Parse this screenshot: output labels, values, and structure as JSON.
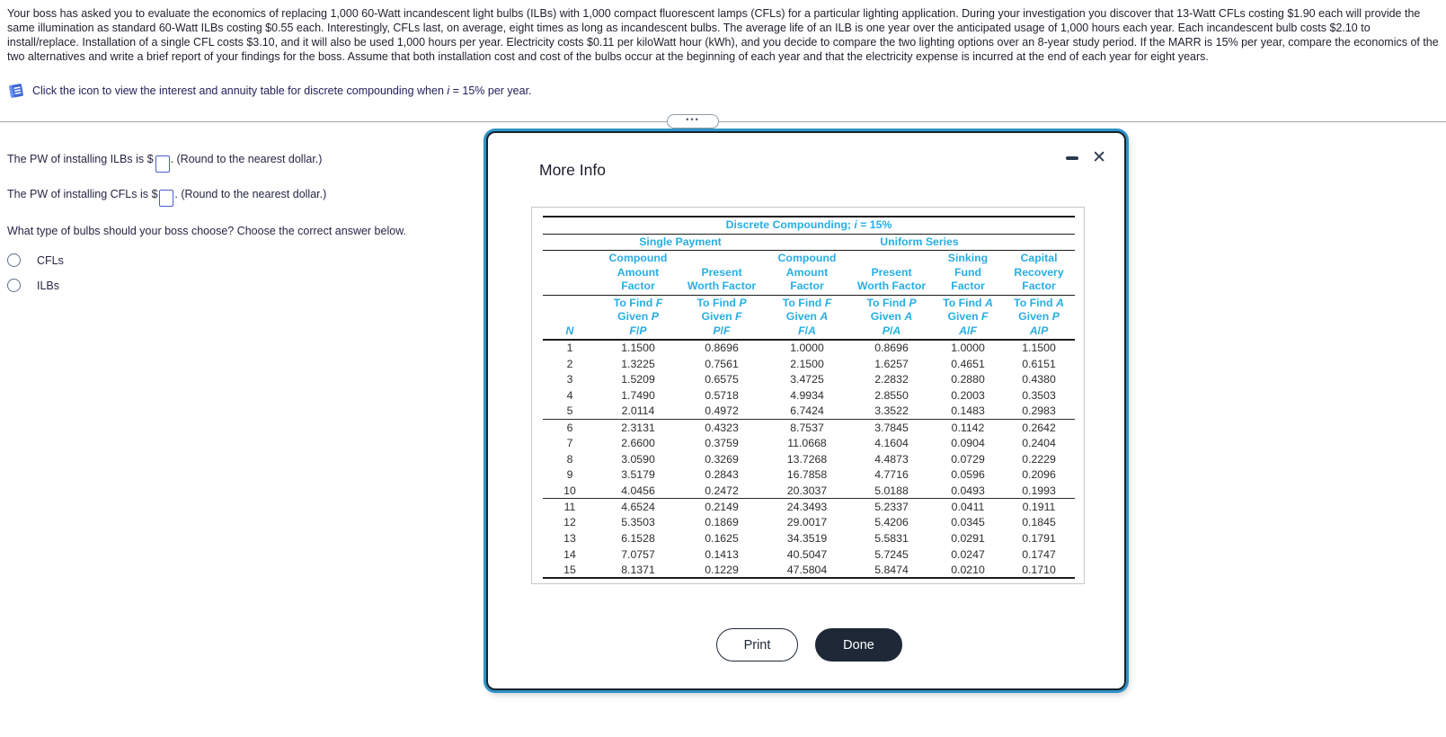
{
  "problem": {
    "text": "Your boss has asked you to evaluate the economics of replacing 1,000 60-Watt incandescent light bulbs (ILBs) with 1,000 compact fluorescent lamps (CFLs) for a particular lighting application. During your investigation you discover that 13-Watt CFLs costing $1.90 each will provide the same illumination as standard 60-Watt ILBs costing $0.55 each. Interestingly, CFLs last, on average, eight times as long as incandescent bulbs. The average life of an ILB is one year over the anticipated usage of 1,000 hours each year. Each incandescent bulb costs $2.10 to install/replace. Installation of a single CFL costs $3.10, and it will also be used 1,000 hours per year. Electricity costs $0.11 per kiloWatt hour (kWh), and you decide to compare the two lighting options over an 8-year study period. If the MARR is 15% per year, compare the economics of the two alternatives and write a brief report of your findings for the boss. Assume that both installation cost and cost of the bulbs occur at the beginning of each year and that the electricity expense is incurred at the end of each year for eight years."
  },
  "info_link": {
    "icon": "book-icon",
    "text": "Click the icon to view the interest and annuity table for discrete compounding when i = 15% per year."
  },
  "divider": {
    "handle_dots": "•••"
  },
  "questions": {
    "q1_prefix": "The PW of installing ILBs is $",
    "q1_value": "",
    "q1_suffix": ". (Round to the nearest dollar.)",
    "q2_prefix": "The PW of installing CFLs is $",
    "q2_value": "",
    "q2_suffix": ". (Round to the nearest dollar.)",
    "q3_text": "What type of bulbs should your boss choose? Choose the correct answer below.",
    "options": [
      {
        "label": "CFLs",
        "selected": false
      },
      {
        "label": "ILBs",
        "selected": false
      }
    ]
  },
  "modal": {
    "title": "More Info",
    "controls": {
      "minimize": "minimize",
      "close": "✕"
    },
    "table": {
      "title": "Discrete Compounding; i = 15%",
      "group_headers": [
        "Single Payment",
        "Uniform Series"
      ],
      "columns": [
        {
          "factor_lines": [],
          "tofind_lines": [
            "N"
          ]
        },
        {
          "factor_lines": [
            "Compound",
            "Amount",
            "Factor"
          ],
          "tofind_lines": [
            "To Find F",
            "Given P",
            "F/P"
          ]
        },
        {
          "factor_lines": [
            "Present",
            "Worth Factor"
          ],
          "tofind_lines": [
            "To Find P",
            "Given F",
            "P/F"
          ]
        },
        {
          "factor_lines": [
            "Compound",
            "Amount",
            "Factor"
          ],
          "tofind_lines": [
            "To Find F",
            "Given A",
            "F/A"
          ]
        },
        {
          "factor_lines": [
            "Present",
            "Worth Factor"
          ],
          "tofind_lines": [
            "To Find P",
            "Given A",
            "P/A"
          ]
        },
        {
          "factor_lines": [
            "Sinking",
            "Fund",
            "Factor"
          ],
          "tofind_lines": [
            "To Find A",
            "Given F",
            "A/F"
          ]
        },
        {
          "factor_lines": [
            "Capital",
            "Recovery",
            "Factor"
          ],
          "tofind_lines": [
            "To Find A",
            "Given P",
            "A/P"
          ]
        }
      ],
      "rows": [
        [
          "1",
          "1.1500",
          "0.8696",
          "1.0000",
          "0.8696",
          "1.0000",
          "1.1500"
        ],
        [
          "2",
          "1.3225",
          "0.7561",
          "2.1500",
          "1.6257",
          "0.4651",
          "0.6151"
        ],
        [
          "3",
          "1.5209",
          "0.6575",
          "3.4725",
          "2.2832",
          "0.2880",
          "0.4380"
        ],
        [
          "4",
          "1.7490",
          "0.5718",
          "4.9934",
          "2.8550",
          "0.2003",
          "0.3503"
        ],
        [
          "5",
          "2.0114",
          "0.4972",
          "6.7424",
          "3.3522",
          "0.1483",
          "0.2983"
        ],
        [
          "6",
          "2.3131",
          "0.4323",
          "8.7537",
          "3.7845",
          "0.1142",
          "0.2642"
        ],
        [
          "7",
          "2.6600",
          "0.3759",
          "11.0668",
          "4.1604",
          "0.0904",
          "0.2404"
        ],
        [
          "8",
          "3.0590",
          "0.3269",
          "13.7268",
          "4.4873",
          "0.0729",
          "0.2229"
        ],
        [
          "9",
          "3.5179",
          "0.2843",
          "16.7858",
          "4.7716",
          "0.0596",
          "0.2096"
        ],
        [
          "10",
          "4.0456",
          "0.2472",
          "20.3037",
          "5.0188",
          "0.0493",
          "0.1993"
        ],
        [
          "11",
          "4.6524",
          "0.2149",
          "24.3493",
          "5.2337",
          "0.0411",
          "0.1911"
        ],
        [
          "12",
          "5.3503",
          "0.1869",
          "29.0017",
          "5.4206",
          "0.0345",
          "0.1845"
        ],
        [
          "13",
          "6.1528",
          "0.1625",
          "34.3519",
          "5.5831",
          "0.0291",
          "0.1791"
        ],
        [
          "14",
          "7.0757",
          "0.1413",
          "40.5047",
          "5.7245",
          "0.0247",
          "0.1747"
        ],
        [
          "15",
          "8.1371",
          "0.1229",
          "47.5804",
          "5.8474",
          "0.0210",
          "0.1710"
        ]
      ]
    },
    "buttons": {
      "print": "Print",
      "done": "Done"
    }
  },
  "colors": {
    "table_header_cyan": "#27aee4",
    "modal_ring_blue": "#2e93c8",
    "modal_border_dark": "#17222e",
    "button_dark_navy": "#1e2837",
    "answer_box_border": "#4a5bd0",
    "info_text_navy": "#21215c"
  }
}
